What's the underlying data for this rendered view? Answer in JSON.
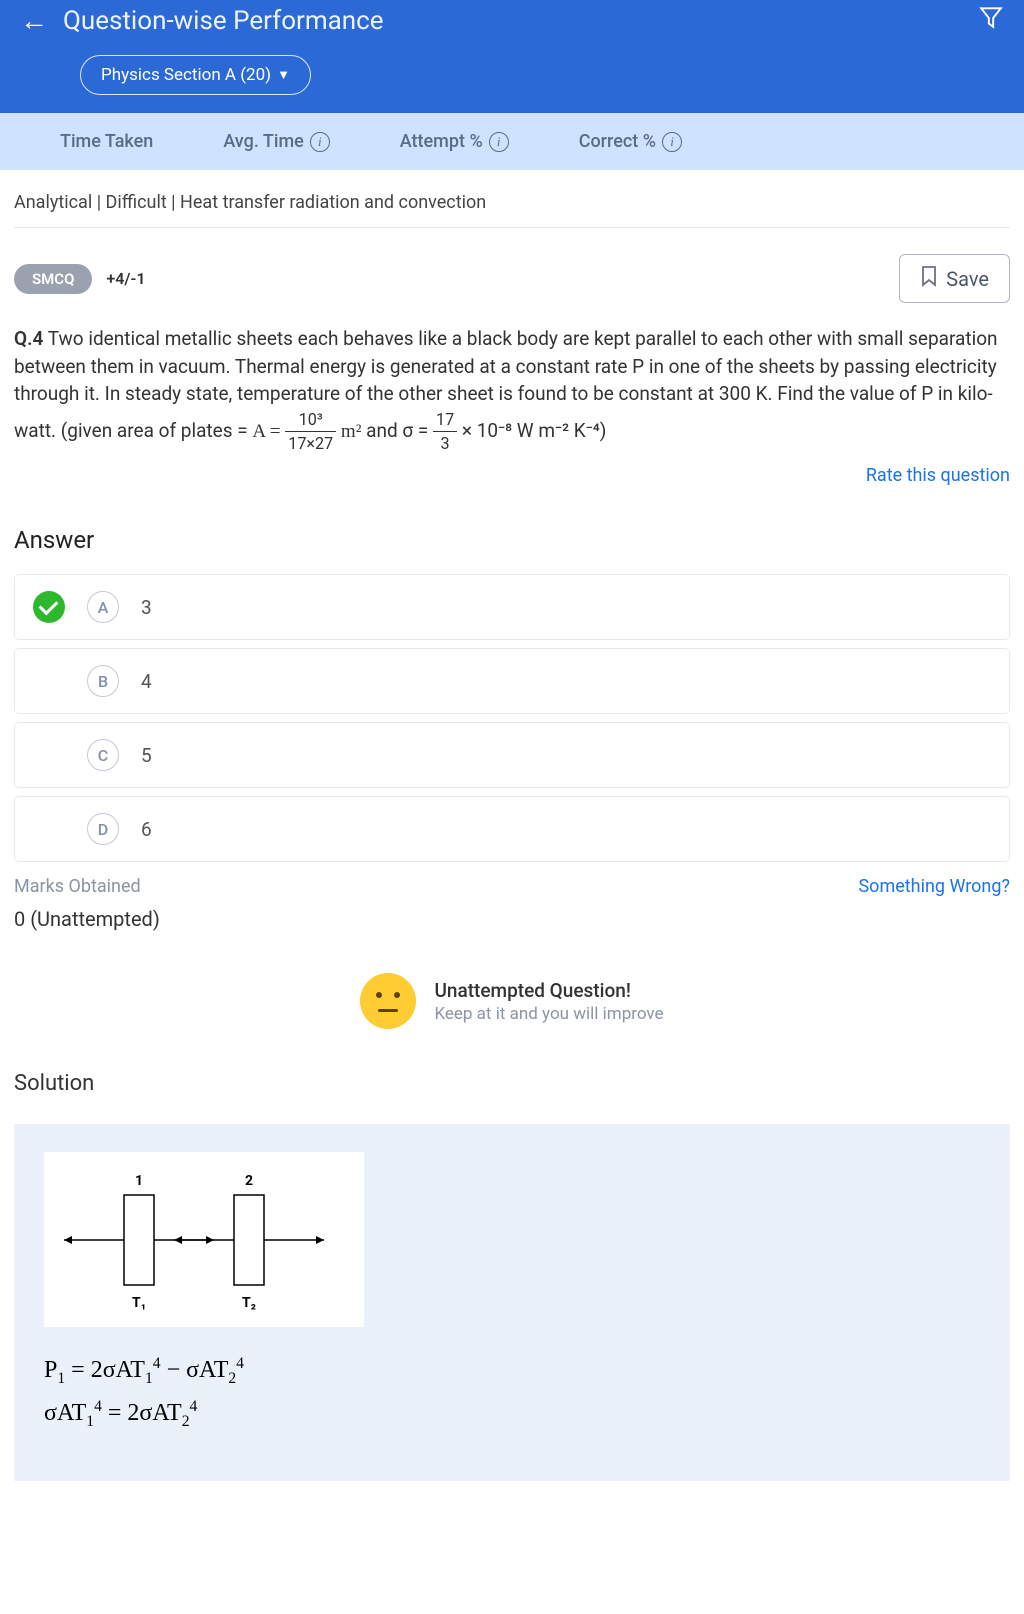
{
  "header": {
    "title": "Question-wise Performance",
    "section_pill": "Physics Section A (20)"
  },
  "stats": {
    "time_taken": "Time Taken",
    "avg_time": "Avg. Time",
    "attempt_pct": "Attempt %",
    "correct_pct": "Correct %"
  },
  "meta": {
    "line": "Analytical | Difficult | Heat transfer radiation and convection"
  },
  "question": {
    "type": "SMCQ",
    "marks": "+4/-1",
    "save_label": "Save",
    "number_prefix": "Q.4",
    "text_pre": " Two identical metallic sheets each behaves like a black body are kept parallel to each other with small separation between them in vacuum. Thermal energy is generated at a constant rate P in one of the sheets by passing electricity through it. In steady state, temperature of the other sheet is found to be constant at 300 K. Find the value of P in kilo-watt. (given area of plates = ",
    "area_expr": {
      "lhs": "A =",
      "num": "10³",
      "den": "17×27",
      "unit": " m²"
    },
    "sigma_text": " and σ = ",
    "sigma_expr": {
      "num": "17",
      "den": "3",
      "tail": " × 10⁻⁸ W m⁻² K⁻⁴)"
    },
    "rate_link": "Rate this question"
  },
  "answer": {
    "heading": "Answer",
    "options": [
      {
        "letter": "A",
        "text": "3",
        "correct": true
      },
      {
        "letter": "B",
        "text": "4",
        "correct": false
      },
      {
        "letter": "C",
        "text": "5",
        "correct": false
      },
      {
        "letter": "D",
        "text": "6",
        "correct": false
      }
    ],
    "marks_label": "Marks Obtained",
    "marks_value": "0 (Unattempted)",
    "wrong_link": "Something Wrong?"
  },
  "feedback": {
    "title": "Unattempted Question!",
    "sub": "Keep at it and you will improve"
  },
  "solution": {
    "heading": "Solution",
    "diagram": {
      "label1": "1",
      "label2": "2",
      "t1": "T₁",
      "t2": "T₂"
    },
    "eq1": "P₁ = 2σAT₁⁴ − σAT₂⁴",
    "eq2": "σAT₁⁴ = 2σAT₂⁴"
  }
}
